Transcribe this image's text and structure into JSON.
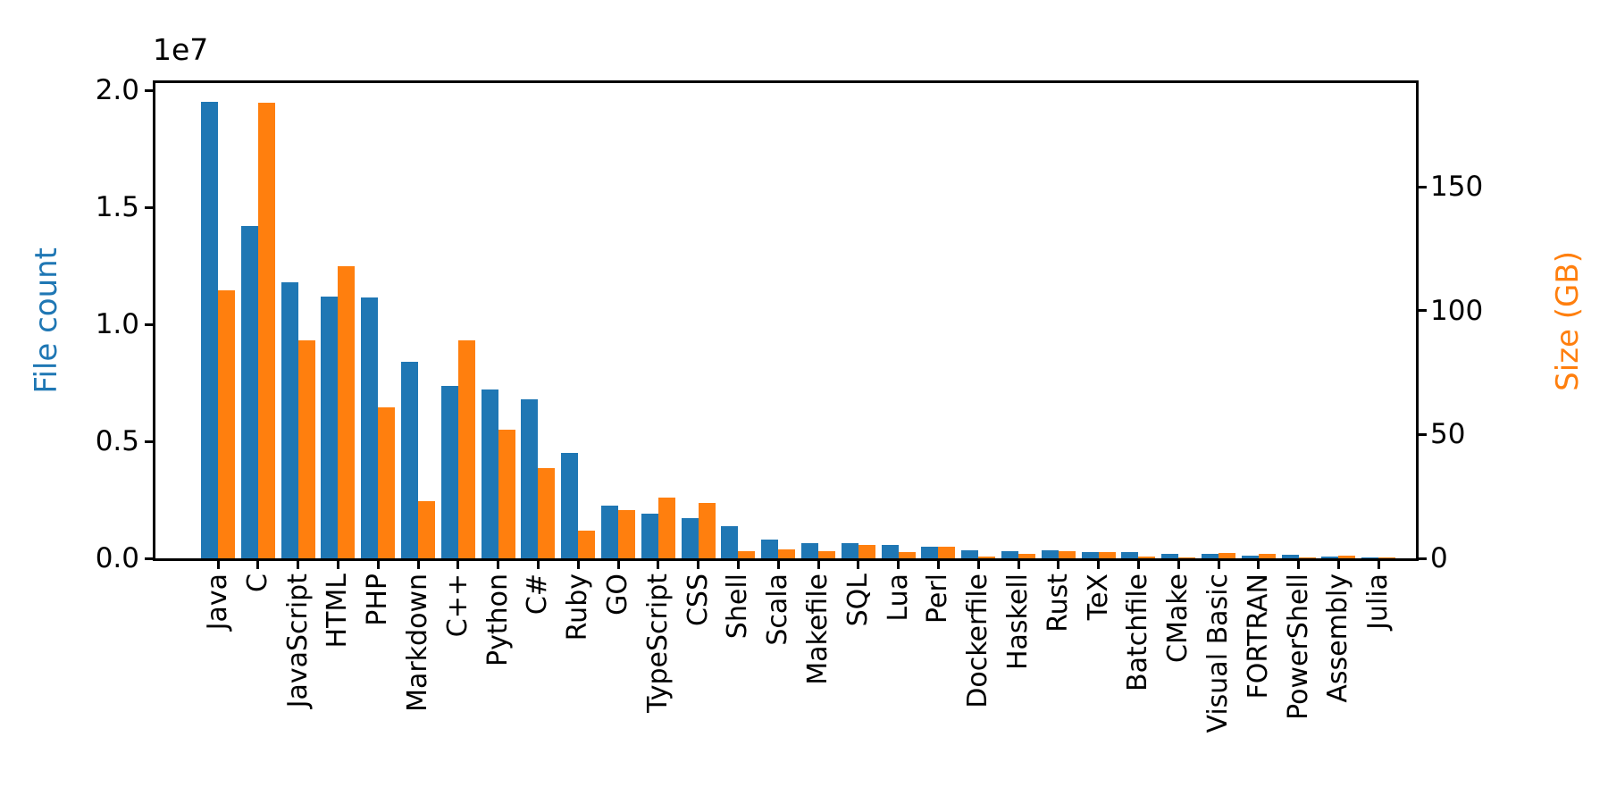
{
  "figure": {
    "offset_text": "1e7",
    "background": "#ffffff",
    "axis_color": "#000000"
  },
  "chart_data": {
    "type": "bar",
    "title": "",
    "categories": [
      "Java",
      "C",
      "JavaScript",
      "HTML",
      "PHP",
      "Markdown",
      "C++",
      "Python",
      "C#",
      "Ruby",
      "GO",
      "TypeScript",
      "CSS",
      "Shell",
      "Scala",
      "Makefile",
      "SQL",
      "Lua",
      "Perl",
      "Dockerfile",
      "Haskell",
      "Rust",
      "TeX",
      "Batchfile",
      "CMake",
      "Visual Basic",
      "FORTRAN",
      "PowerShell",
      "Assembly",
      "Julia"
    ],
    "series": [
      {
        "name": "File count",
        "axis": "left",
        "color": "#1f77b4",
        "values": [
          19500000,
          14200000,
          11800000,
          11200000,
          11150000,
          8400000,
          7350000,
          7200000,
          6800000,
          4500000,
          2260000,
          1920000,
          1730000,
          1370000,
          800000,
          660000,
          650000,
          570000,
          480000,
          340000,
          310000,
          330000,
          260000,
          250000,
          180000,
          180000,
          110000,
          150000,
          65000,
          50000
        ]
      },
      {
        "name": "Size (GB)",
        "axis": "right",
        "color": "#ff7f0e",
        "values": [
          108,
          184,
          88,
          118,
          61,
          23,
          88,
          52,
          36.5,
          11,
          19.5,
          24.5,
          22.5,
          3,
          3.6,
          2.9,
          5.3,
          2.6,
          4.6,
          0.7,
          1.9,
          2.8,
          2.4,
          0.6,
          0.5,
          2.3,
          1.8,
          0.4,
          1,
          0.3
        ]
      }
    ],
    "left_axis": {
      "label": "File count",
      "label_color": "#1f77b4",
      "tick_values": [
        0,
        5000000,
        10000000,
        15000000,
        20000000
      ],
      "tick_labels": [
        "0.0",
        "0.5",
        "1.0",
        "1.5",
        "2.0"
      ],
      "offset_text": "1e7",
      "range": [
        0,
        20400000
      ]
    },
    "right_axis": {
      "label": "Size (GB)",
      "label_color": "#ff7f0e",
      "tick_values": [
        0,
        50,
        100,
        150
      ],
      "tick_labels": [
        "0",
        "50",
        "100",
        "150"
      ],
      "range": [
        0,
        192.5
      ]
    },
    "x_axis": {
      "tick_rotation_deg": 90
    },
    "legend": "none",
    "grid": false
  }
}
